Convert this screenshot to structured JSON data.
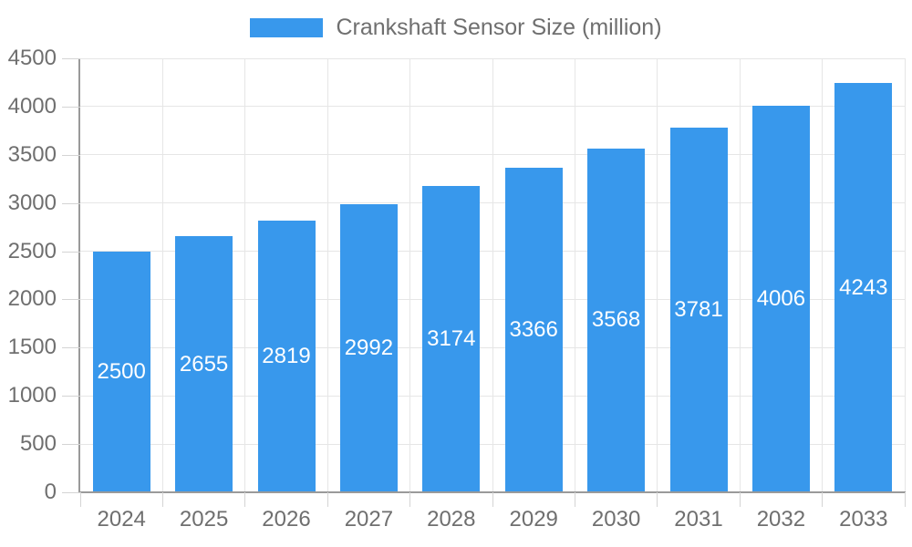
{
  "chart_data": {
    "type": "bar",
    "title": "Crankshaft Sensor Size (million)",
    "legend": [
      "Crankshaft Sensor Size (million)"
    ],
    "legend_position": "top",
    "categories": [
      "2024",
      "2025",
      "2026",
      "2027",
      "2028",
      "2029",
      "2030",
      "2031",
      "2032",
      "2033"
    ],
    "values": [
      2500,
      2655,
      2819,
      2992,
      3174,
      3366,
      3568,
      3781,
      4006,
      4243
    ],
    "xlabel": "",
    "ylabel": "",
    "ylim": [
      0,
      4500
    ],
    "ytick_step": 500,
    "grid": true,
    "value_labels_shown": true
  },
  "colors": {
    "bar": "#3898EC",
    "grid": "#E6E6E6",
    "tick": "#D4D4D4",
    "axis": "#9A9A9A",
    "axis_label": "#6F6F6F",
    "value_label": "#FFFFFF",
    "background": "#FFFFFF"
  }
}
